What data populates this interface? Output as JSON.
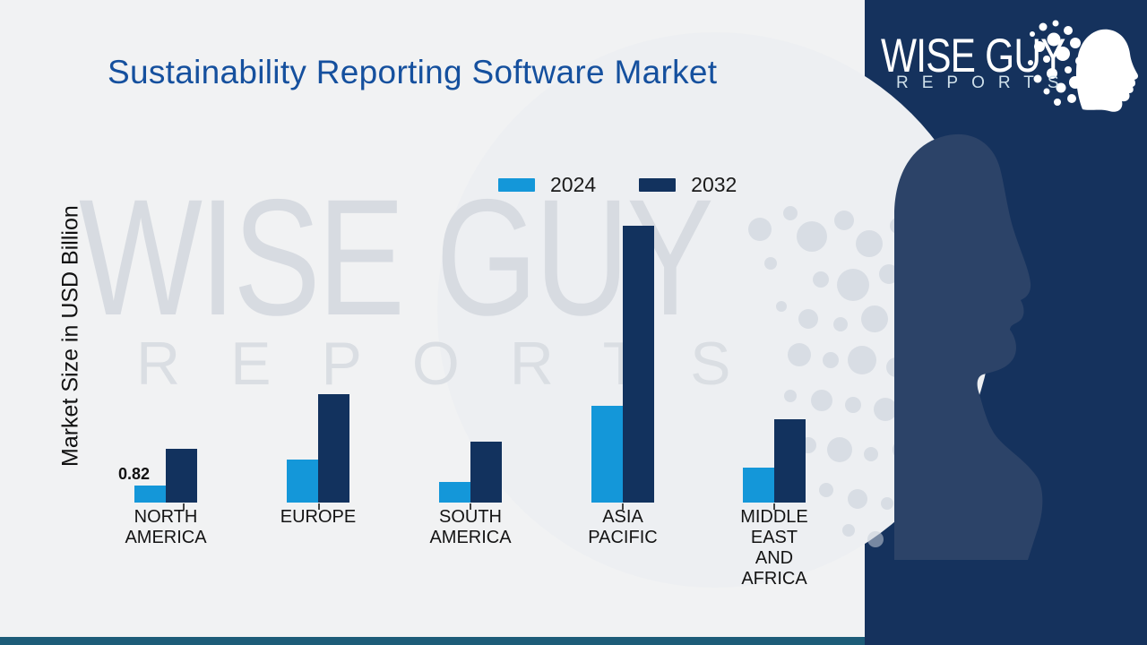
{
  "header": {
    "title": "Sustainability Reporting Software Market"
  },
  "watermark": {
    "wordmark": "WISE GUY",
    "sub": "REPORTS"
  },
  "brand": {
    "wordmark": "WISE GUY",
    "sub": "REPORTS",
    "panel_color": "#15325d",
    "accent_strip_color": "#1d5c78"
  },
  "chart_data": {
    "type": "bar",
    "title": "Sustainability Reporting Software Market",
    "xlabel": "",
    "ylabel": "Market Size in USD Billion",
    "unit": "USD Billion",
    "grid": false,
    "legend_position": "top-right",
    "ylim": [
      0,
      14
    ],
    "categories": [
      "NORTH AMERICA",
      "EUROPE",
      "SOUTH AMERICA",
      "ASIA PACIFIC",
      "MIDDLE EAST AND AFRICA"
    ],
    "series": [
      {
        "name": "2024",
        "color": "#1497d9",
        "values": [
          0.82,
          2.07,
          0.99,
          4.66,
          1.68
        ]
      },
      {
        "name": "2032",
        "color": "#12325e",
        "values": [
          2.59,
          5.22,
          2.93,
          13.34,
          4.01
        ]
      }
    ],
    "data_labels": [
      {
        "category_index": 0,
        "series_index": 0,
        "text": "0.82"
      }
    ]
  }
}
